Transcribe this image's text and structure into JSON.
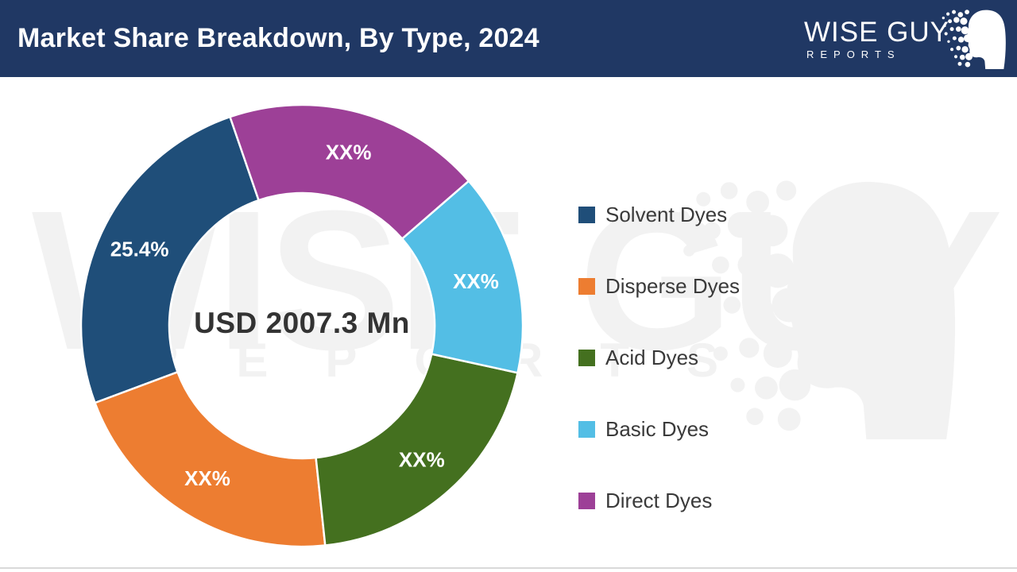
{
  "header": {
    "title": "Market Share Breakdown, By Type, 2024",
    "logo": {
      "wordmark": "WISE GUY",
      "subtext": "REPORTS"
    }
  },
  "watermark": {
    "wordmark": "WISE GUY",
    "subtext": "REPORTS"
  },
  "chart_data": {
    "type": "pie",
    "subtype": "donut",
    "title": "Market Share Breakdown, By Type, 2024",
    "center_label": "USD 2007.3 Mn",
    "start_angle_deg": 109,
    "direction": "counterclockwise",
    "legend_position": "right",
    "inner_radius_ratio": 0.6,
    "segments": [
      {
        "label": "Solvent Dyes",
        "value_pct": 25.4,
        "display": "25.4%",
        "color": "#1F4E79"
      },
      {
        "label": "Disperse Dyes",
        "value_pct": 21.0,
        "display": "XX%",
        "color": "#ED7D31"
      },
      {
        "label": "Acid Dyes",
        "value_pct": 19.9,
        "display": "XX%",
        "color": "#44701F"
      },
      {
        "label": "Basic Dyes",
        "value_pct": 14.8,
        "display": "XX%",
        "color": "#53BEE5"
      },
      {
        "label": "Direct Dyes",
        "value_pct": 18.9,
        "display": "XX%",
        "color": "#9D4097"
      }
    ]
  },
  "colors": {
    "header_bg": "#203864",
    "watermark": "#F2F2F2",
    "center_text": "#333333",
    "legend_text": "#3A3A3A",
    "segment_label_text": "#FFFFFF"
  }
}
